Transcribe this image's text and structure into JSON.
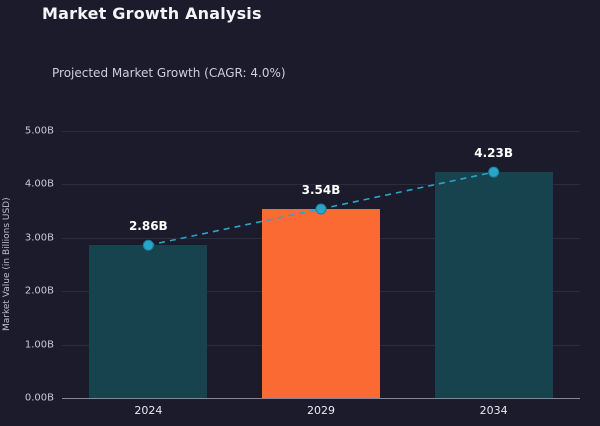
{
  "chart_data": {
    "type": "bar",
    "title": "Market Growth Analysis",
    "subtitle": "Projected Market Growth (CAGR: 4.0%)",
    "categories": [
      "2024",
      "2029",
      "2034"
    ],
    "values": [
      2.86,
      3.54,
      4.23
    ],
    "value_labels": [
      "2.86B",
      "3.54B",
      "4.23B"
    ],
    "bar_colors": [
      "#17434f",
      "#fb6a33",
      "#17434f"
    ],
    "trend_line": {
      "style": "dashed",
      "color": "#2aa5c8",
      "point_color": "#2aa5c8",
      "point_edge_color": "#1b7f9d",
      "values": [
        2.86,
        3.54,
        4.23
      ]
    },
    "xlabel": "",
    "ylabel": "Market Value (in Billions USD)",
    "ylim": [
      0,
      5
    ],
    "y_ticks": [
      "0.00B",
      "1.00B",
      "2.00B",
      "3.00B",
      "4.00B",
      "5.00B"
    ],
    "grid": true,
    "legend": false,
    "layout": {
      "background": "#1b1b2c",
      "axis_color": "#878795",
      "text_color": "#e8e8f0"
    }
  }
}
